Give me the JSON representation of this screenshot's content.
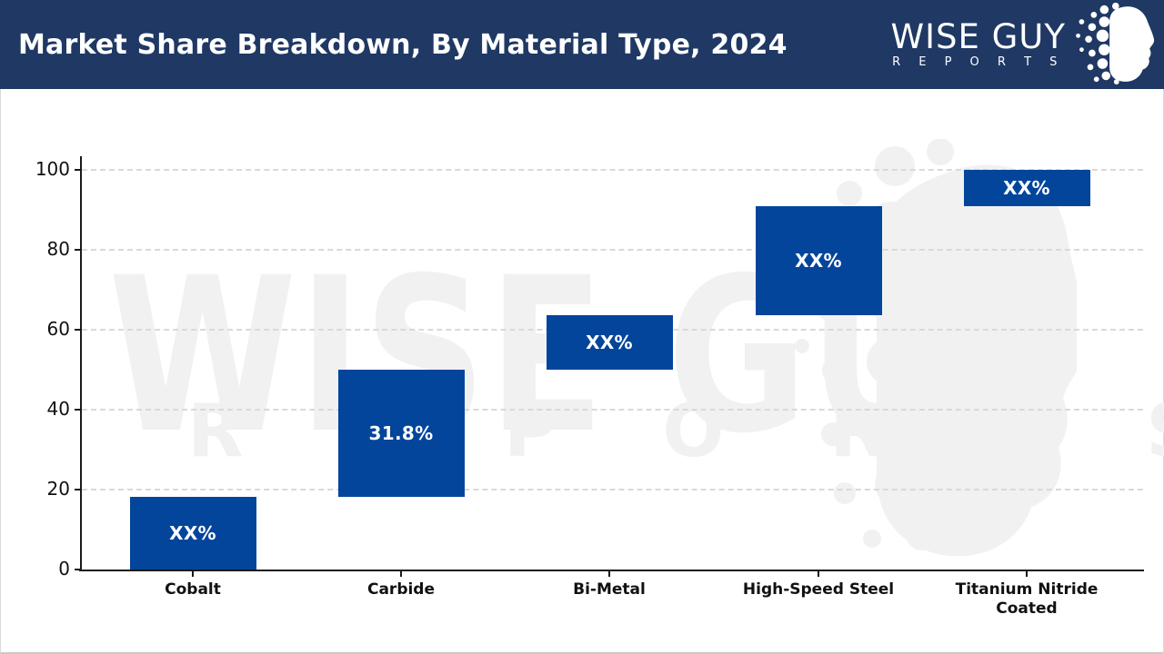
{
  "header": {
    "title": "Market Share Breakdown, By Material Type, 2024",
    "logo": {
      "line1": "WISE GUY",
      "line2": "R E P O R T S"
    }
  },
  "watermark": {
    "line1": "WISE GUY",
    "line2": "R E P O R T S"
  },
  "colors": {
    "header_bg": "#1F3864",
    "bar": "#04459C",
    "grid": "#d9d9d9",
    "axis": "#1a1a1a",
    "watermark": "#f1f1f2",
    "bar_label_text": "#ffffff"
  },
  "chart_data": {
    "type": "bar",
    "subtype": "floating-waterfall",
    "title": "Market Share Breakdown, By Material Type, 2024",
    "categories": [
      "Cobalt",
      "Carbide",
      "Bi-Metal",
      "High-Speed Steel",
      "Titanium Nitride Coated"
    ],
    "series": [
      {
        "name": "Market Share (%)",
        "segments": [
          {
            "category": "Cobalt",
            "start": 0,
            "end": 18.2,
            "label": "XX%"
          },
          {
            "category": "Carbide",
            "start": 18.2,
            "end": 50,
            "label": "31.8%"
          },
          {
            "category": "Bi-Metal",
            "start": 50,
            "end": 63.6,
            "label": "XX%"
          },
          {
            "category": "High-Speed Steel",
            "start": 63.6,
            "end": 90.9,
            "label": "XX%"
          },
          {
            "category": "Titanium Nitride Coated",
            "start": 90.9,
            "end": 100,
            "label": "XX%"
          }
        ]
      }
    ],
    "xlabel": "",
    "ylabel": "",
    "ylim": [
      0,
      100
    ],
    "yticks": [
      0,
      20,
      40,
      60,
      80,
      100
    ],
    "grid": "horizontal dashed",
    "legend": "none"
  }
}
